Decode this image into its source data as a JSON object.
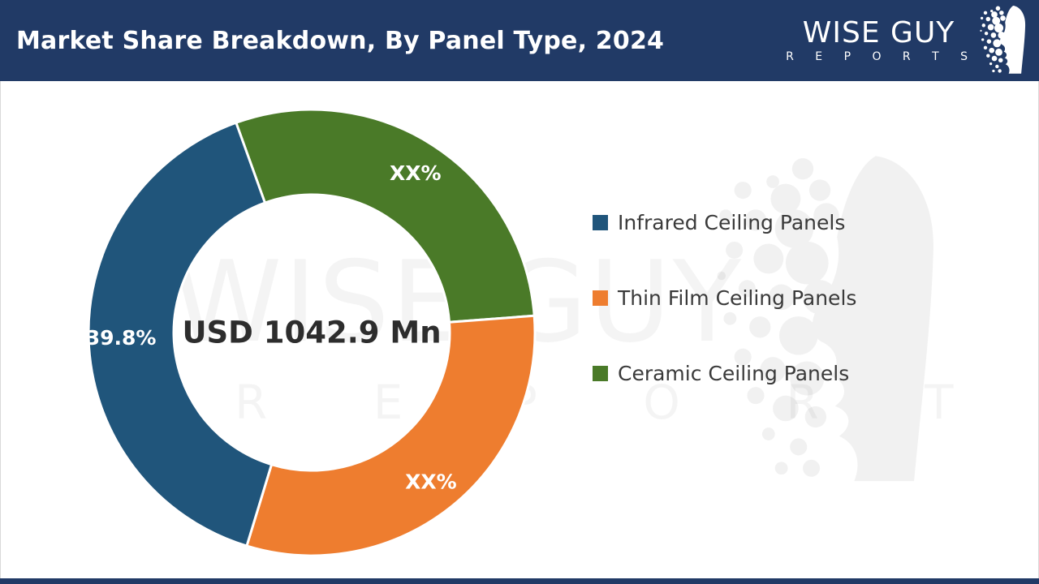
{
  "header": {
    "title": "Market Share Breakdown, By Panel Type, 2024",
    "logo": {
      "line1": "WISE GUY",
      "line2": "R E P O R T S",
      "face_icon": "dotted-head-profile"
    }
  },
  "colors": {
    "navy": "#213A66",
    "border_gray": "#D9D9D9",
    "legend_text": "#3A3A3A",
    "center_text": "#2D2D2D"
  },
  "chart_data": {
    "type": "pie",
    "subtype": "donut",
    "title": "Market Share Breakdown, By Panel Type, 2024",
    "center_label": "USD 1042.9 Mn",
    "start_angle_deg": -19.8,
    "legend_position": "right",
    "segments": [
      {
        "label": "Ceramic Ceiling Panels",
        "pct": 29.3,
        "display": "XX%",
        "color": "#4A7A28"
      },
      {
        "label": "Thin Film Ceiling Panels",
        "pct": 30.9,
        "display": "XX%",
        "color": "#EE7D2F"
      },
      {
        "label": "Infrared Ceiling Panels",
        "pct": 39.8,
        "display": "39.8%",
        "color": "#20557B"
      }
    ],
    "legend_order": [
      2,
      1,
      0
    ]
  },
  "watermark": {
    "line1": "WISE GUY",
    "line2": "R E P O R T S"
  }
}
